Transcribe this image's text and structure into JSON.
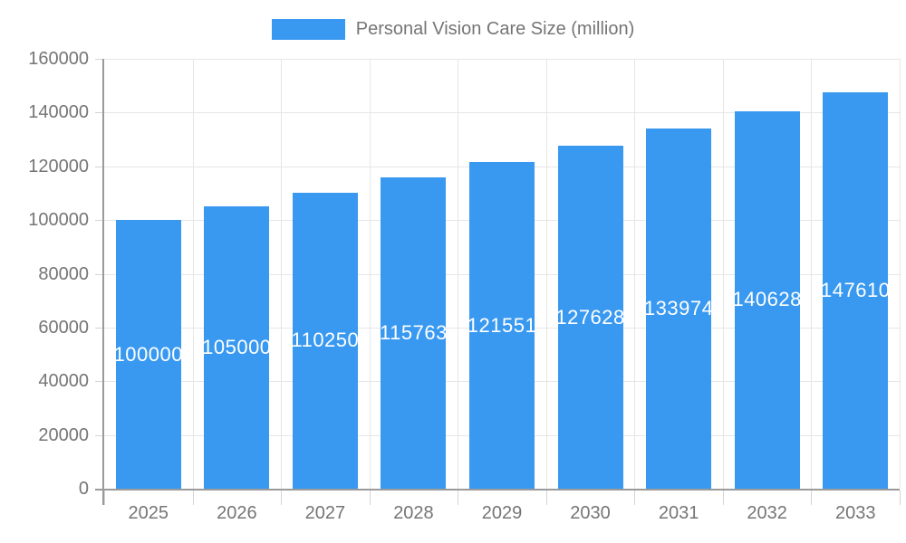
{
  "legend": {
    "label": "Personal Vision Care Size (million)"
  },
  "chart_data": {
    "type": "bar",
    "title": "Personal Vision Care Size (million)",
    "xlabel": "",
    "ylabel": "",
    "categories": [
      "2025",
      "2026",
      "2027",
      "2028",
      "2029",
      "2030",
      "2031",
      "2032",
      "2033"
    ],
    "values": [
      100000,
      105000,
      110250,
      115763,
      121551,
      127628,
      133974,
      140628,
      147610
    ],
    "bar_labels": [
      "100000",
      "105000",
      "110250",
      "115763",
      "121551",
      "127628",
      "133974",
      "140628",
      "147610"
    ],
    "ylim": [
      0,
      160000
    ],
    "y_ticks": [
      0,
      20000,
      40000,
      60000,
      80000,
      100000,
      120000,
      140000,
      160000
    ],
    "grid": true,
    "legend_position": "top",
    "colors": {
      "bar": "#3999f0",
      "bar_label_text": "#ffffff",
      "axis_text": "#757575",
      "gridline": "#e6e6e6",
      "axis_line": "#9a9a9a"
    }
  }
}
